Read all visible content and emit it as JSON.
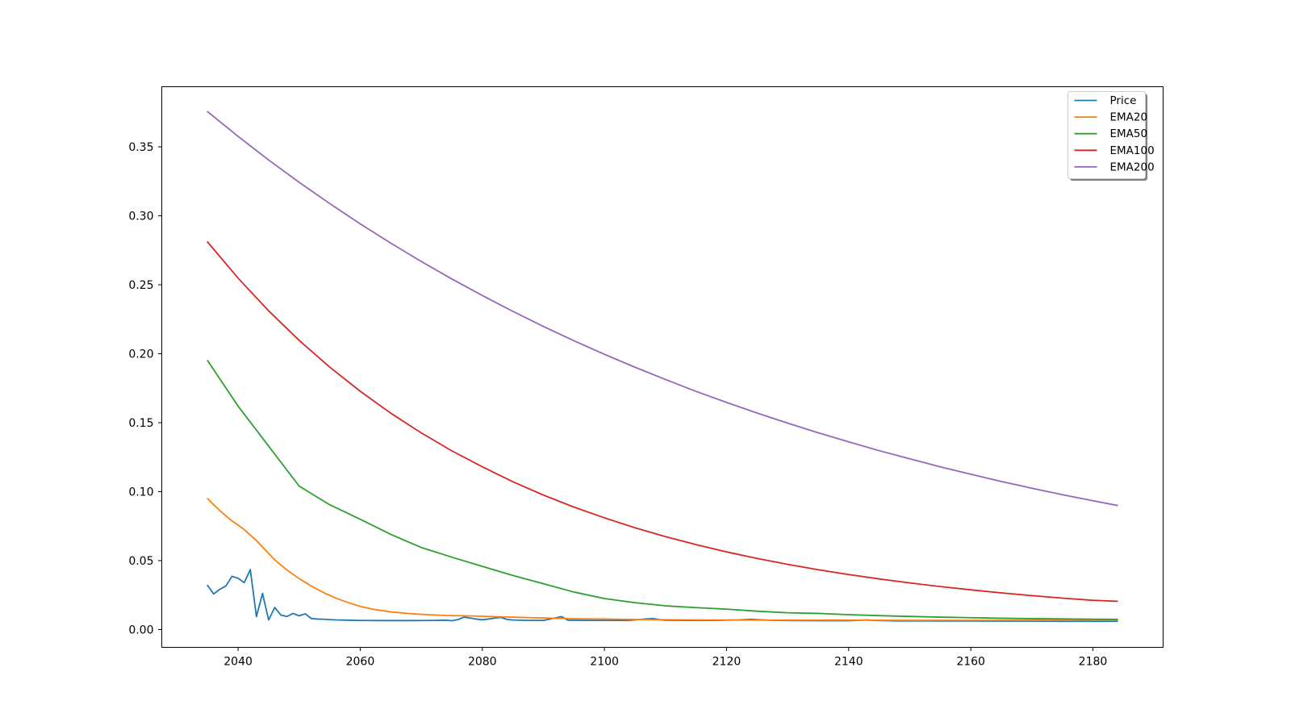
{
  "figure": {
    "background": "#ffffff",
    "title": ""
  },
  "chart_data": {
    "type": "line",
    "title": "",
    "xlabel": "",
    "ylabel": "",
    "grid": false,
    "xlim": [
      2027.5,
      2191.5
    ],
    "ylim": [
      -0.0129,
      0.3936
    ],
    "x_ticks": [
      2040,
      2060,
      2080,
      2100,
      2120,
      2140,
      2160,
      2180
    ],
    "x_tick_labels": [
      "2040",
      "2060",
      "2080",
      "2100",
      "2120",
      "2140",
      "2160",
      "2180"
    ],
    "y_ticks": [
      0.0,
      0.05,
      0.1,
      0.15,
      0.2,
      0.25,
      0.3,
      0.35
    ],
    "y_tick_labels": [
      "0.00",
      "0.05",
      "0.10",
      "0.15",
      "0.20",
      "0.25",
      "0.30",
      "0.35"
    ],
    "legend": {
      "position": "upper right",
      "shadow": true,
      "entries": [
        "Price",
        "EMA20",
        "EMA50",
        "EMA100",
        "EMA200"
      ]
    },
    "series": [
      {
        "name": "Price",
        "color": "#1f77b4",
        "x": [
          2035,
          2036,
          2037,
          2038,
          2039,
          2040,
          2041,
          2042,
          2043,
          2044,
          2045,
          2046,
          2047,
          2048,
          2049,
          2050,
          2051,
          2052,
          2053,
          2054,
          2055,
          2056,
          2058,
          2060,
          2063,
          2066,
          2069,
          2072,
          2074,
          2075,
          2076,
          2077,
          2078,
          2079,
          2080,
          2081,
          2082,
          2083,
          2084,
          2085,
          2087,
          2090,
          2093,
          2094,
          2097,
          2100,
          2104,
          2107,
          2108,
          2109,
          2110,
          2114,
          2118,
          2122,
          2124,
          2126,
          2128,
          2132,
          2136,
          2140,
          2143,
          2144,
          2148,
          2152,
          2156,
          2160,
          2165,
          2170,
          2175,
          2180,
          2184
        ],
        "y": [
          0.032,
          0.0258,
          0.0292,
          0.0316,
          0.0386,
          0.0372,
          0.034,
          0.0435,
          0.0094,
          0.0262,
          0.007,
          0.016,
          0.0105,
          0.0095,
          0.0117,
          0.01,
          0.0114,
          0.008,
          0.0076,
          0.0075,
          0.0072,
          0.007,
          0.0068,
          0.0066,
          0.0065,
          0.0065,
          0.0065,
          0.0066,
          0.0068,
          0.0064,
          0.0072,
          0.009,
          0.0084,
          0.0076,
          0.0071,
          0.0076,
          0.0083,
          0.0088,
          0.0074,
          0.0069,
          0.0067,
          0.0066,
          0.0094,
          0.0068,
          0.0066,
          0.0066,
          0.0066,
          0.0078,
          0.008,
          0.0072,
          0.0067,
          0.0066,
          0.0066,
          0.007,
          0.0074,
          0.007,
          0.0066,
          0.0065,
          0.0064,
          0.0064,
          0.007,
          0.0066,
          0.0063,
          0.0063,
          0.0062,
          0.0062,
          0.0061,
          0.0061,
          0.006,
          0.006,
          0.006
        ]
      },
      {
        "name": "EMA20",
        "color": "#ff7f0e",
        "x": [
          2035,
          2036,
          2037,
          2038,
          2039,
          2040,
          2041,
          2042,
          2043,
          2044,
          2045,
          2046,
          2047,
          2048,
          2049,
          2050,
          2052,
          2054,
          2056,
          2058,
          2060,
          2062,
          2065,
          2068,
          2071,
          2074,
          2077,
          2080,
          2084,
          2088,
          2092,
          2096,
          2100,
          2105,
          2110,
          2115,
          2120,
          2130,
          2140,
          2150,
          2160,
          2170,
          2180,
          2184
        ],
        "y": [
          0.095,
          0.0905,
          0.0863,
          0.0824,
          0.0788,
          0.0757,
          0.0725,
          0.0685,
          0.0645,
          0.0598,
          0.0552,
          0.0506,
          0.0468,
          0.0432,
          0.04,
          0.037,
          0.0315,
          0.0268,
          0.0228,
          0.0196,
          0.0168,
          0.0148,
          0.0128,
          0.0116,
          0.0108,
          0.0102,
          0.01,
          0.0096,
          0.0091,
          0.0086,
          0.0082,
          0.0078,
          0.0076,
          0.0073,
          0.0071,
          0.007,
          0.0069,
          0.0068,
          0.0068,
          0.0067,
          0.0067,
          0.0067,
          0.0067,
          0.0067
        ]
      },
      {
        "name": "EMA50",
        "color": "#2ca02c",
        "x": [
          2035,
          2040,
          2045,
          2050,
          2055,
          2060,
          2065,
          2070,
          2075,
          2080,
          2085,
          2090,
          2095,
          2100,
          2105,
          2110,
          2115,
          2120,
          2125,
          2130,
          2135,
          2140,
          2145,
          2150,
          2155,
          2160,
          2165,
          2170,
          2175,
          2180,
          2184
        ],
        "y": [
          0.195,
          0.162,
          0.133,
          0.104,
          0.0905,
          0.08,
          0.069,
          0.0595,
          0.0525,
          0.0458,
          0.0392,
          0.0332,
          0.0272,
          0.0225,
          0.0195,
          0.0172,
          0.0159,
          0.0148,
          0.0133,
          0.0122,
          0.0117,
          0.0108,
          0.0101,
          0.0095,
          0.009,
          0.0086,
          0.0082,
          0.0079,
          0.0077,
          0.0075,
          0.0074
        ]
      },
      {
        "name": "EMA100",
        "color": "#d62728",
        "x": [
          2035,
          2040,
          2045,
          2050,
          2055,
          2060,
          2065,
          2070,
          2075,
          2080,
          2085,
          2090,
          2095,
          2100,
          2105,
          2110,
          2115,
          2120,
          2125,
          2130,
          2135,
          2140,
          2145,
          2150,
          2155,
          2160,
          2165,
          2170,
          2175,
          2180,
          2184
        ],
        "y": [
          0.281,
          0.2548,
          0.2311,
          0.2097,
          0.1903,
          0.1728,
          0.1569,
          0.1426,
          0.1296,
          0.118,
          0.1072,
          0.0975,
          0.0888,
          0.081,
          0.0738,
          0.0674,
          0.0616,
          0.0563,
          0.0516,
          0.0473,
          0.0434,
          0.0399,
          0.0367,
          0.0338,
          0.0312,
          0.0288,
          0.0266,
          0.0246,
          0.0228,
          0.0212,
          0.0205
        ]
      },
      {
        "name": "EMA200",
        "color": "#9467bd",
        "x": [
          2035,
          2040,
          2045,
          2050,
          2055,
          2060,
          2065,
          2070,
          2075,
          2080,
          2085,
          2090,
          2095,
          2100,
          2105,
          2110,
          2115,
          2120,
          2125,
          2130,
          2135,
          2140,
          2145,
          2150,
          2155,
          2160,
          2165,
          2170,
          2175,
          2180,
          2184
        ],
        "y": [
          0.3755,
          0.3576,
          0.3405,
          0.3243,
          0.3089,
          0.2942,
          0.2802,
          0.2669,
          0.2542,
          0.2422,
          0.2307,
          0.2198,
          0.2094,
          0.1996,
          0.1902,
          0.1813,
          0.1727,
          0.1647,
          0.157,
          0.1497,
          0.1427,
          0.1361,
          0.1297,
          0.1238,
          0.118,
          0.1126,
          0.1074,
          0.1025,
          0.0978,
          0.0934,
          0.09
        ]
      }
    ]
  }
}
